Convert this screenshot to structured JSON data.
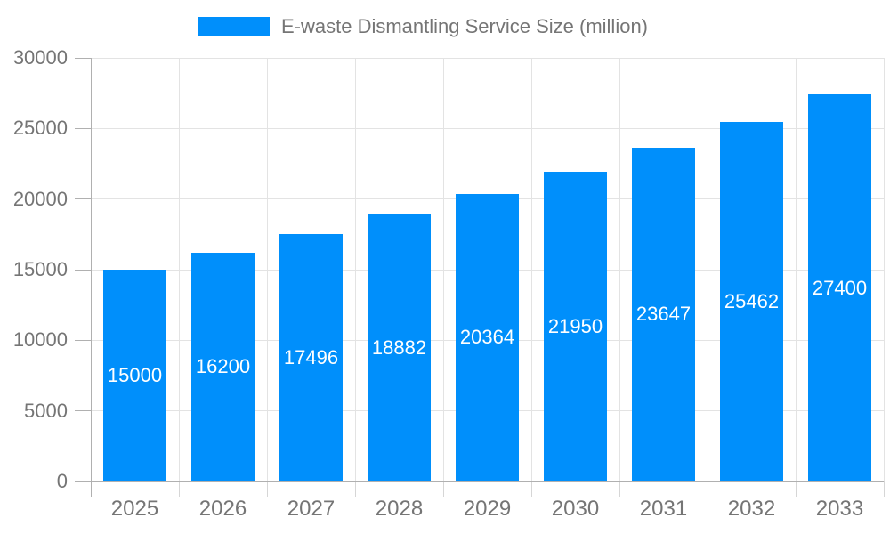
{
  "legend": {
    "label": "E-waste Dismantling Service Size (million)"
  },
  "colors": {
    "bar": "#008FFB",
    "axis_text": "#757575",
    "value_text": "#ffffff",
    "gridline": "#e3e3e3",
    "axis_line": "#b0b0b0",
    "minor_tick": "#d6d6d6",
    "background": "#ffffff"
  },
  "chart_data": {
    "type": "bar",
    "title": "E-waste Dismantling Service Size (million)",
    "series": [
      {
        "name": "E-waste Dismantling Service Size (million)",
        "values": [
          15000,
          16200,
          17496,
          18882,
          20364,
          21950,
          23647,
          25462,
          27400
        ]
      }
    ],
    "categories": [
      "2025",
      "2026",
      "2027",
      "2028",
      "2029",
      "2030",
      "2031",
      "2032",
      "2033"
    ],
    "xlabel": "",
    "ylabel": "",
    "ylim": [
      0,
      30000
    ],
    "y_ticks": [
      0,
      5000,
      10000,
      15000,
      20000,
      25000,
      30000
    ],
    "grid": "on",
    "legend_position": "top",
    "value_labels_position": "inside-center"
  }
}
